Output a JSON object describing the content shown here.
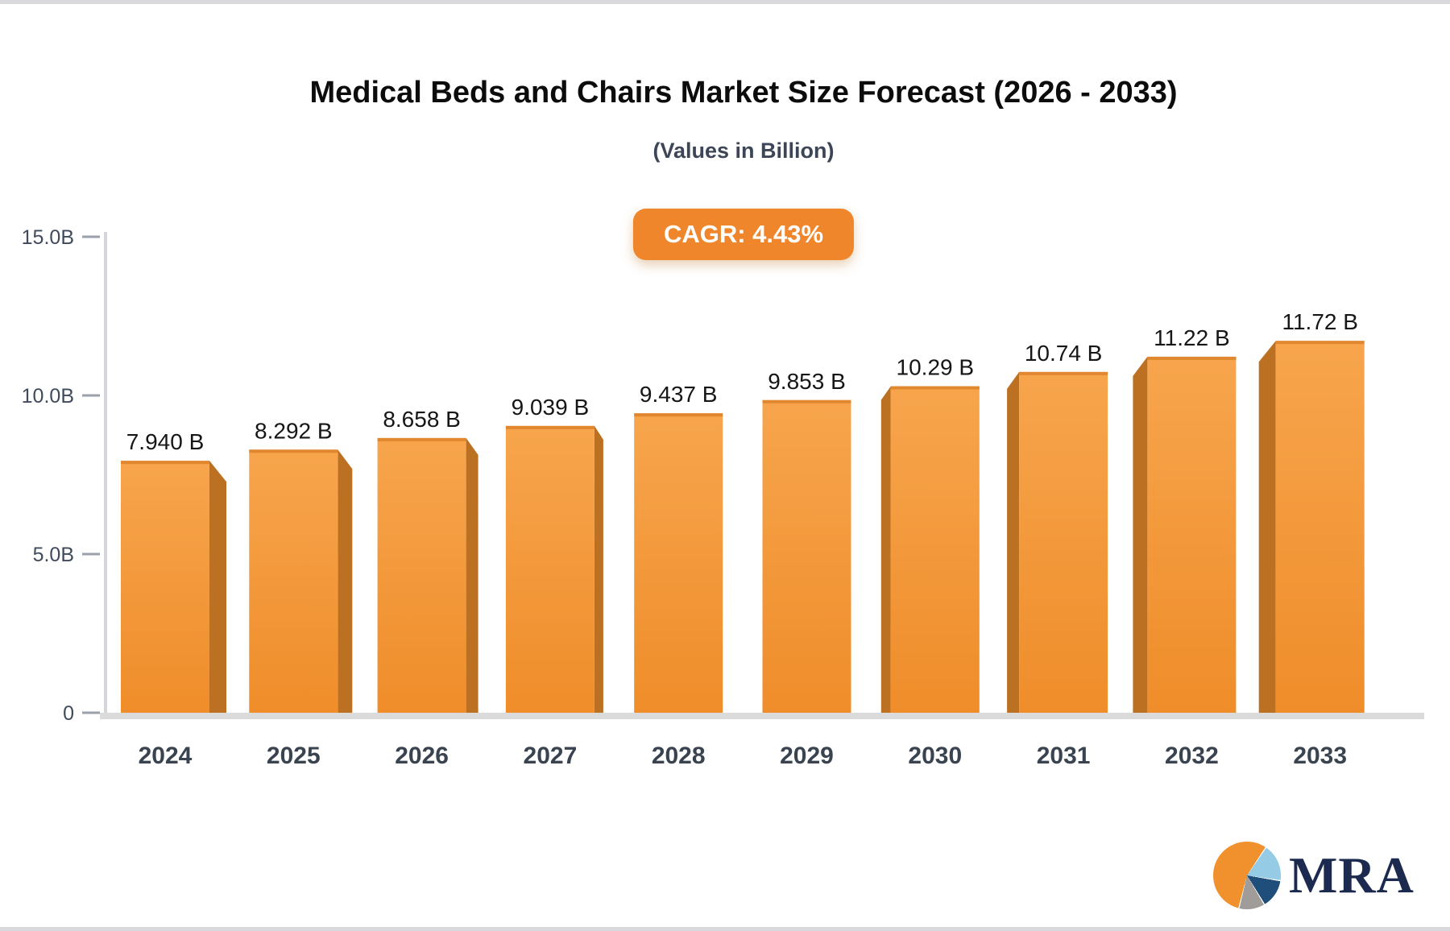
{
  "chart_data": {
    "type": "bar",
    "title": "Medical Beds and Chairs Market Size Forecast (2026 - 2033)",
    "subtitle": "(Values in Billion)",
    "cagr_label": "CAGR: 4.43%",
    "unit": "Billion",
    "categories": [
      "2024",
      "2025",
      "2026",
      "2027",
      "2028",
      "2029",
      "2030",
      "2031",
      "2032",
      "2033"
    ],
    "values": [
      7.94,
      8.292,
      8.658,
      9.039,
      9.437,
      9.853,
      10.29,
      10.74,
      11.22,
      11.72
    ],
    "value_labels": [
      "7.940 B",
      "8.292 B",
      "8.658 B",
      "9.039 B",
      "9.437 B",
      "9.853 B",
      "10.29 B",
      "10.74 B",
      "11.22 B",
      "11.72 B"
    ],
    "xlabel": "",
    "ylabel": "",
    "ylim": [
      0,
      15
    ],
    "yticks": [
      {
        "value": 0,
        "label": "0"
      },
      {
        "value": 5,
        "label": "5.0B"
      },
      {
        "value": 10,
        "label": "10.0B"
      },
      {
        "value": 15,
        "label": "15.0B"
      }
    ],
    "grid": false,
    "legend": null,
    "colors": {
      "bar_top": "#F7A54D",
      "bar_bottom": "#EF8D2A",
      "bar_edge": "#E0872F",
      "bar_side": "#BC7022",
      "badge_bg": "#F0862B",
      "axis": "#D5D6DA",
      "tick": "#9AA1AA",
      "baseline": "#DBDBDB",
      "value_label": "#161616",
      "xlabel_color": "#3A4450",
      "ylabel_color": "#3F4B5C"
    }
  },
  "footer": {
    "logo_text": "MRA",
    "logo_colors": {
      "orange": "#F0912D",
      "light_blue": "#96CBE5",
      "navy_slice": "#1E4E79",
      "gray": "#9F9C9A",
      "text": "#1B2A4E"
    }
  }
}
